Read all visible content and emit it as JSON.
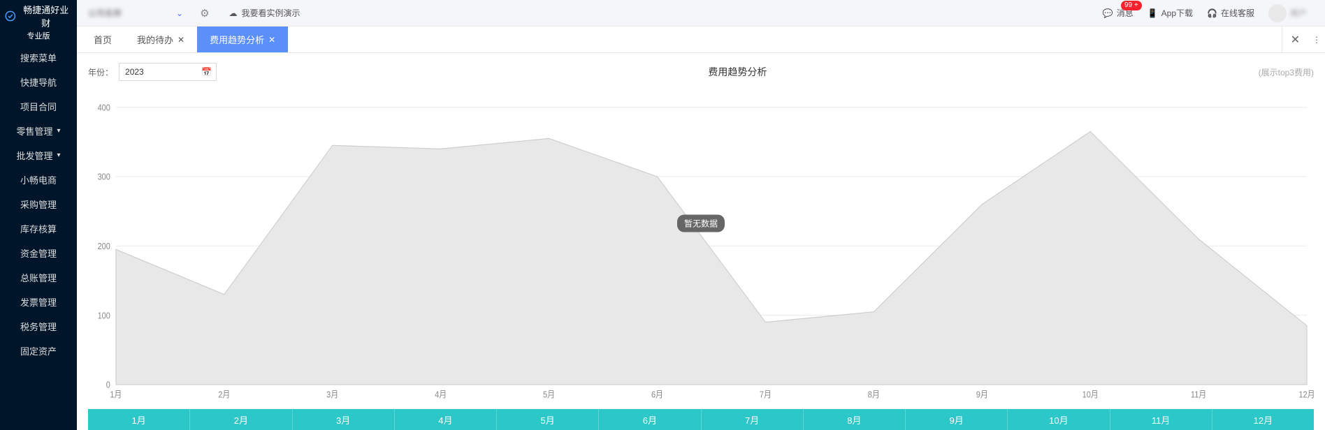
{
  "brand": {
    "name": "畅捷通好业财",
    "edition": "专业版"
  },
  "sidebar": {
    "items": [
      {
        "label": "搜索菜单",
        "caret": false
      },
      {
        "label": "快捷导航",
        "caret": false
      },
      {
        "label": "项目合同",
        "caret": false
      },
      {
        "label": "零售管理",
        "caret": true
      },
      {
        "label": "批发管理",
        "caret": true
      },
      {
        "label": "小畅电商",
        "caret": false
      },
      {
        "label": "采购管理",
        "caret": false
      },
      {
        "label": "库存核算",
        "caret": false
      },
      {
        "label": "资金管理",
        "caret": false
      },
      {
        "label": "总账管理",
        "caret": false
      },
      {
        "label": "发票管理",
        "caret": false
      },
      {
        "label": "税务管理",
        "caret": false
      },
      {
        "label": "固定资产",
        "caret": false
      }
    ]
  },
  "topbar": {
    "selector": "公司名称",
    "demo": "我要看实例演示",
    "messages": {
      "label": "消息",
      "badge": "99 +"
    },
    "download": "App下载",
    "service": "在线客服",
    "username": "用户"
  },
  "tabs": {
    "items": [
      {
        "label": "首页",
        "closable": false,
        "active": false
      },
      {
        "label": "我的待办",
        "closable": true,
        "active": false
      },
      {
        "label": "费用趋势分析",
        "closable": true,
        "active": true
      }
    ]
  },
  "filter": {
    "year_label": "年份：",
    "year_value": "2023"
  },
  "chart": {
    "title": "费用趋势分析",
    "note": "(展示top3费用)",
    "tooltip": "暂无数据",
    "type": "area",
    "x_labels": [
      "1月",
      "2月",
      "3月",
      "4月",
      "5月",
      "6月",
      "7月",
      "8月",
      "9月",
      "10月",
      "11月",
      "12月"
    ],
    "values": [
      195,
      130,
      345,
      340,
      355,
      300,
      90,
      105,
      260,
      365,
      210,
      85
    ],
    "ylim": [
      0,
      400
    ],
    "ytick_step": 100,
    "area_fill": "#e8e8e8",
    "area_stroke": "#cccccc",
    "grid_color": "#eeeeee",
    "axis_text_color": "#888888",
    "background": "#ffffff",
    "month_bar_bg": "#2bc7c9",
    "month_bar_text": "#ffffff"
  }
}
